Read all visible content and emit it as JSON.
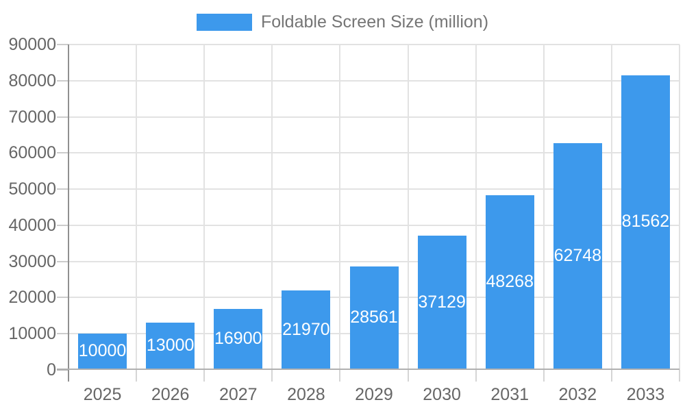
{
  "chart_data": {
    "type": "bar",
    "title": "",
    "legend": "Foldable Screen Size (million)",
    "legend_position": "top",
    "categories": [
      "2025",
      "2026",
      "2027",
      "2028",
      "2029",
      "2030",
      "2031",
      "2032",
      "2033"
    ],
    "values": [
      10000,
      13000,
      16900,
      21970,
      28561,
      37129,
      48268,
      62748,
      81562
    ],
    "value_labels": [
      "10000",
      "13000",
      "16900",
      "21970",
      "28561",
      "37129",
      "48268",
      "62748",
      "81562"
    ],
    "xlabel": "",
    "ylabel": "",
    "ylim": [
      0,
      90000
    ],
    "ytick_step": 10000,
    "yticks": [
      0,
      10000,
      20000,
      30000,
      40000,
      50000,
      60000,
      70000,
      80000,
      90000
    ],
    "grid": true,
    "bar_color": "#3d99ec",
    "value_label_color": "#ffffff"
  },
  "colors": {
    "background": "#ffffff",
    "axis_text": "#666666",
    "legend_text": "#757575",
    "gridline": "#e2e2e2",
    "y_tick": "#cccccc",
    "x_tick": "#d5d5d5",
    "y_axis_line": "#909090",
    "x_axis_line": "#b0b0b0"
  }
}
